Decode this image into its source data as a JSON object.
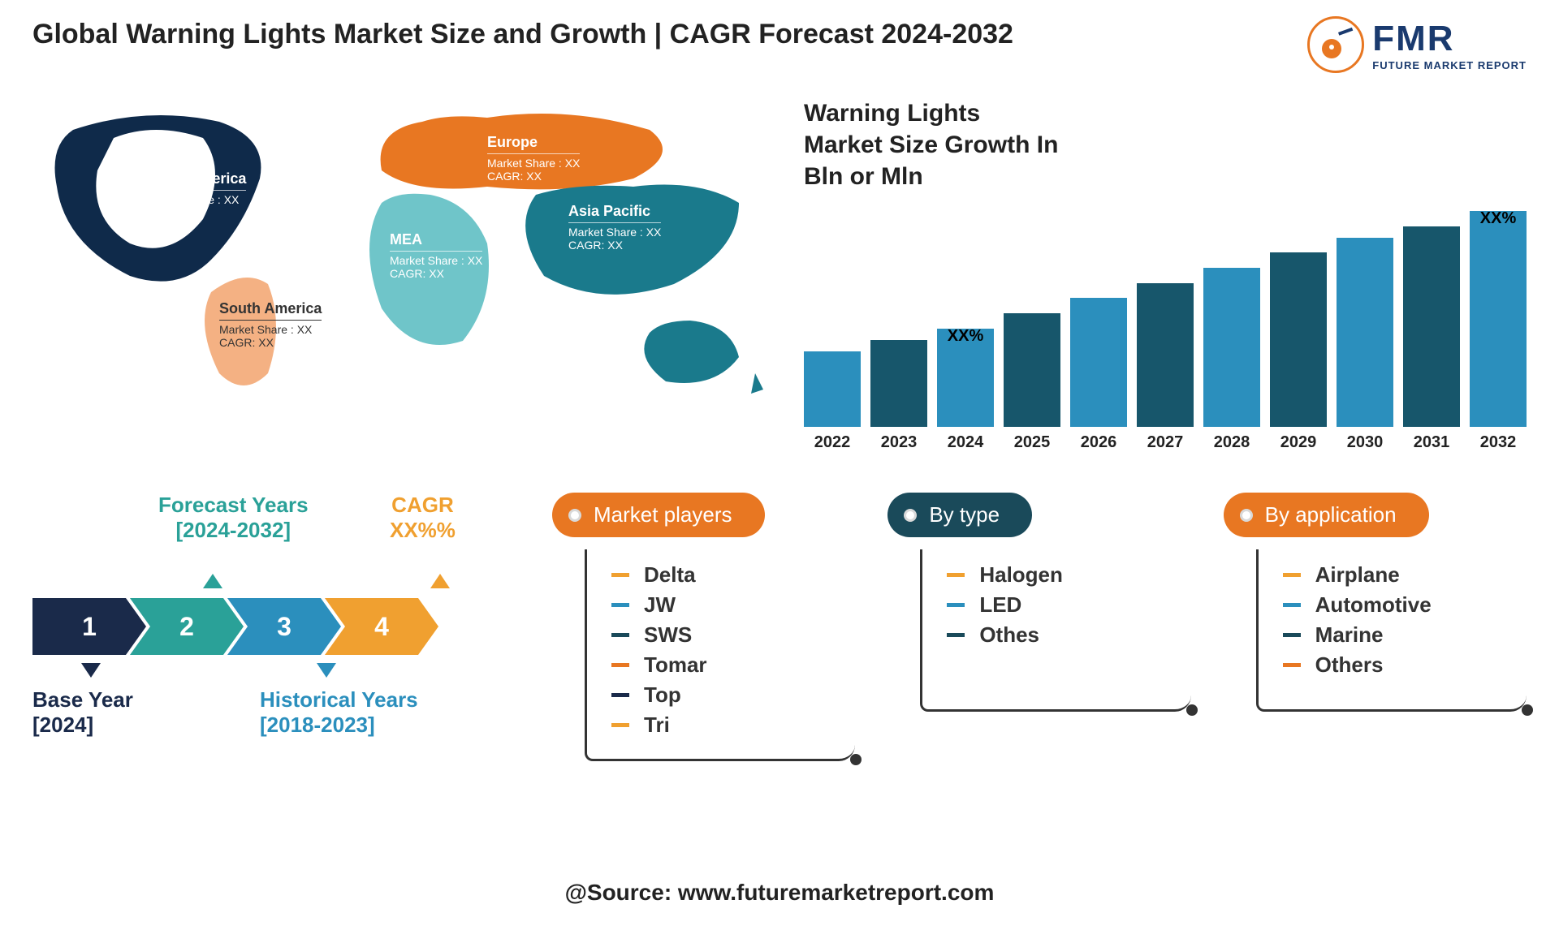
{
  "title": "Global Warning Lights  Market Size and Growth | CAGR Forecast 2024-2032",
  "logo": {
    "fmr": "FMR",
    "sub": "FUTURE MARKET REPORT"
  },
  "source": "@Source: www.futuremarketreport.com",
  "map": {
    "regions": [
      {
        "name": "North America",
        "share": "Market Share : XX",
        "cagr": "CAGR: XX",
        "color": "#0f2a4a"
      },
      {
        "name": "South America",
        "share": "Market Share : XX",
        "cagr": "CAGR: XX",
        "color": "#f4b183"
      },
      {
        "name": "Europe",
        "share": "Market Share : XX",
        "cagr": "CAGR: XX",
        "color": "#e87722"
      },
      {
        "name": "MEA",
        "share": "Market Share : XX",
        "cagr": "CAGR: XX",
        "color": "#6fc5c9"
      },
      {
        "name": "Asia Pacific",
        "share": "Market Share : XX",
        "cagr": "CAGR: XX",
        "color": "#1a7a8c"
      }
    ]
  },
  "chart": {
    "title": "Warning Lights\nMarket Size Growth In\nBln or Mln",
    "type": "bar",
    "years": [
      "2022",
      "2023",
      "2024",
      "2025",
      "2026",
      "2027",
      "2028",
      "2029",
      "2030",
      "2031",
      "2032"
    ],
    "values": [
      100,
      115,
      130,
      150,
      170,
      190,
      210,
      230,
      250,
      265,
      285
    ],
    "colors": [
      "#2b8fbd",
      "#17566b",
      "#2b8fbd",
      "#17566b",
      "#2b8fbd",
      "#17566b",
      "#2b8fbd",
      "#17566b",
      "#2b8fbd",
      "#17566b",
      "#2b8fbd"
    ],
    "max": 300,
    "annotations": [
      {
        "text": "XX%",
        "index": 2
      },
      {
        "text": "XX%",
        "index": 10
      }
    ],
    "label_fontsize": 20,
    "title_fontsize": 30
  },
  "timeline": {
    "forecast": {
      "label": "Forecast Years",
      "range": "[2024-2032]",
      "color": "#2aa198"
    },
    "cagr": {
      "label": "CAGR",
      "value": "XX%%",
      "color": "#f0a030"
    },
    "base": {
      "label": "Base Year",
      "range": "[2024]",
      "color": "#1a2a4a"
    },
    "historical": {
      "label": "Historical Years",
      "range": "[2018-2023]",
      "color": "#2b8fbd"
    },
    "steps": [
      {
        "num": "1",
        "color": "#1a2a4a"
      },
      {
        "num": "2",
        "color": "#2aa198"
      },
      {
        "num": "3",
        "color": "#2b8fbd"
      },
      {
        "num": "4",
        "color": "#f0a030"
      }
    ]
  },
  "categories": [
    {
      "title": "Market players",
      "pill_color": "#e87722",
      "items": [
        {
          "label": "Delta",
          "marker": "#f0a030"
        },
        {
          "label": "JW",
          "marker": "#2b8fbd"
        },
        {
          "label": "SWS",
          "marker": "#1a4a5a"
        },
        {
          "label": "Tomar",
          "marker": "#e87722"
        },
        {
          "label": "Top",
          "marker": "#1a2a4a"
        },
        {
          "label": "Tri",
          "marker": "#f0a030"
        }
      ]
    },
    {
      "title": "By type",
      "pill_color": "#1a4a5a",
      "items": [
        {
          "label": "Halogen",
          "marker": "#f0a030"
        },
        {
          "label": "LED",
          "marker": "#2b8fbd"
        },
        {
          "label": "Othes",
          "marker": "#1a4a5a"
        }
      ]
    },
    {
      "title": "By application",
      "pill_color": "#e87722",
      "items": [
        {
          "label": "Airplane",
          "marker": "#f0a030"
        },
        {
          "label": "Automotive",
          "marker": "#2b8fbd"
        },
        {
          "label": "Marine",
          "marker": "#1a4a5a"
        },
        {
          "label": "Others",
          "marker": "#e87722"
        }
      ]
    }
  ]
}
